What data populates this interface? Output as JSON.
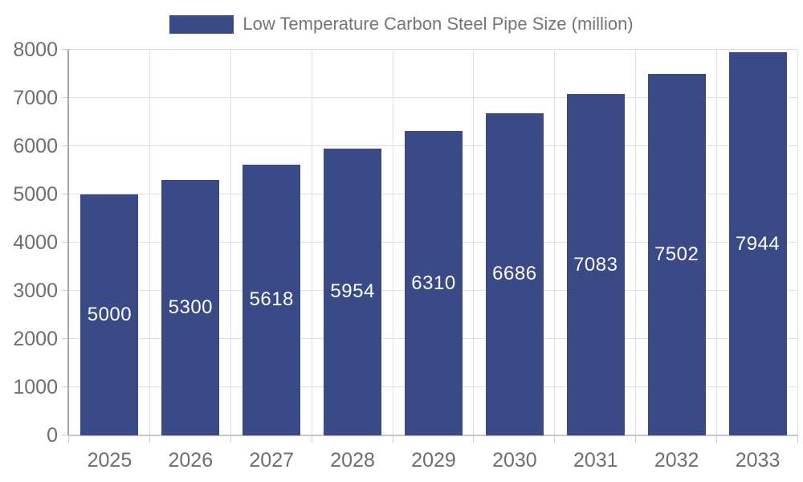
{
  "chart_data": {
    "type": "bar",
    "title": "Low Temperature Carbon Steel Pipe Size (million)",
    "categories": [
      "2025",
      "2026",
      "2027",
      "2028",
      "2029",
      "2030",
      "2031",
      "2032",
      "2033"
    ],
    "values": [
      5000,
      5300,
      5618,
      5954,
      6310,
      6686,
      7083,
      7502,
      7944
    ],
    "xlabel": "",
    "ylabel": "",
    "ylim": [
      0,
      8000
    ],
    "ytick_interval": 1000,
    "ytick_labels": [
      "0",
      "1000",
      "2000",
      "3000",
      "4000",
      "5000",
      "6000",
      "7000",
      "8000"
    ],
    "grid": true,
    "legend_position": "top-center",
    "value_label_position": "inside-center",
    "colors": {
      "bar": "#3A4A87",
      "grid": "#E0E0E0",
      "y_axis_line": "#A6A6A6",
      "x_axis_line": "#C2C6CE",
      "tick": "#CCCCCC",
      "axis_text": "#6E6E6E",
      "value_text": "#FFFFFF",
      "legend_text": "#757575"
    }
  }
}
